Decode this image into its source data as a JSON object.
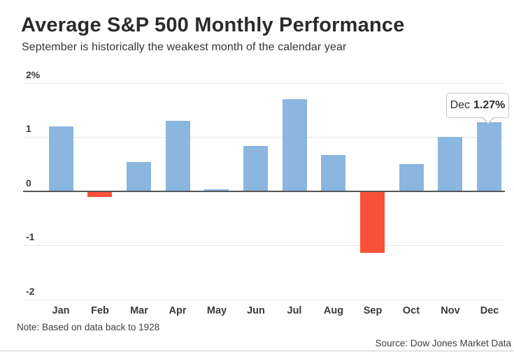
{
  "header": {
    "title": "Average S&P 500 Monthly Performance",
    "subtitle": "September is historically the weakest month of the calendar year"
  },
  "callout": {
    "month": "Dec",
    "value": "1.27%"
  },
  "footer": {
    "note": "Note: Based on data back to 1928",
    "source": "Source: Dow Jones Market Data"
  },
  "chart_data": {
    "type": "bar",
    "title": "Average S&P 500 Monthly Performance",
    "subtitle": "September is historically the weakest month of the calendar year",
    "categories": [
      "Jan",
      "Feb",
      "Mar",
      "Apr",
      "May",
      "Jun",
      "Jul",
      "Aug",
      "Sep",
      "Oct",
      "Nov",
      "Dec"
    ],
    "values": [
      1.2,
      -0.1,
      0.53,
      1.3,
      0.03,
      0.83,
      1.7,
      0.67,
      -1.13,
      0.5,
      1.0,
      1.27
    ],
    "unit": "%",
    "ylim": [
      -2,
      2
    ],
    "yticks": [
      "2%",
      "1",
      "0",
      "-1",
      "-2"
    ],
    "ytick_values": [
      2,
      1,
      0,
      -1,
      -2
    ],
    "grid": true,
    "legend": "none",
    "annotation": "Dec 1.27%",
    "bar_colors": {
      "positive": "#8AB6E0",
      "negative": "#F9503A"
    }
  }
}
